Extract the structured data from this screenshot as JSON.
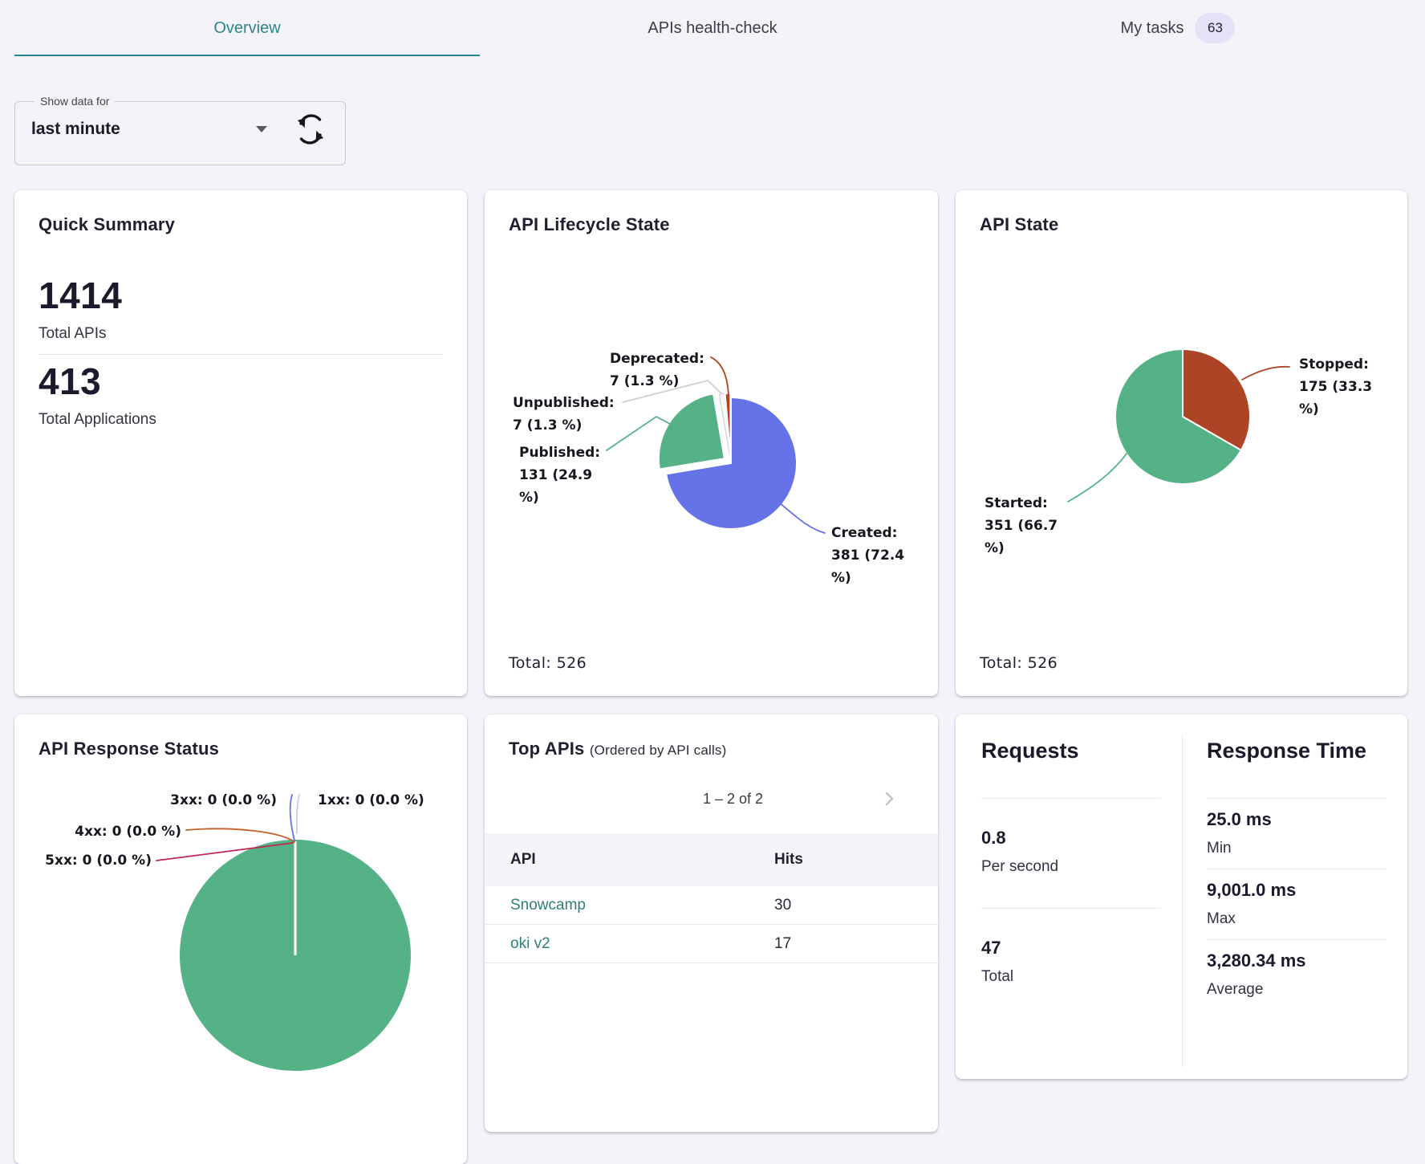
{
  "tabs": {
    "overview": "Overview",
    "health": "APIs health-check",
    "tasks": "My tasks",
    "tasks_badge": "63"
  },
  "filter": {
    "label": "Show data for",
    "value": "last minute"
  },
  "colors": {
    "accent_teal": "#2b858c",
    "link_teal": "#2f7e78",
    "slice_blue": "#6673e8",
    "slice_green": "#54b286",
    "slice_red": "#b5431f",
    "slice_brick": "#ad4425",
    "badge_bg": "#e5e2f7"
  },
  "cards": {
    "quick_summary": {
      "title": "Quick Summary",
      "metrics": [
        {
          "value": "1414",
          "label": "Total APIs"
        },
        {
          "value": "413",
          "label": "Total Applications"
        }
      ]
    },
    "top_apis": {
      "title": "Top APIs",
      "subtitle": "(Ordered by API calls)",
      "pagination_range": "1 – 2 of 2",
      "columns": [
        "API",
        "Hits"
      ],
      "rows": [
        {
          "api": "Snowcamp",
          "hits": "30"
        },
        {
          "api": "oki v2",
          "hits": "17"
        }
      ]
    },
    "requests_response": {
      "left": {
        "title": "Requests",
        "rows": [
          {
            "value": "0.8",
            "label": "Per second"
          },
          {
            "value": "47",
            "label": "Total"
          }
        ]
      },
      "right": {
        "title": "Response Time",
        "rows": [
          {
            "value": "25.0 ms",
            "label": "Min"
          },
          {
            "value": "9,001.0 ms",
            "label": "Max"
          },
          {
            "value": "3,280.34 ms",
            "label": "Average"
          }
        ]
      }
    }
  },
  "chart_data": [
    {
      "id": "lifecycle",
      "type": "pie",
      "title": "API Lifecycle State",
      "total_label": "Total: 526",
      "total": 526,
      "slices": [
        {
          "name": "Created",
          "value": 381,
          "percent": 72.4,
          "color": "#6673e8",
          "label_lines": [
            "Created:",
            "381 (72.4",
            "%)"
          ]
        },
        {
          "name": "Published",
          "value": 131,
          "percent": 24.9,
          "color": "#54b286",
          "label_lines": [
            "Published:",
            "131 (24.9",
            "%)"
          ]
        },
        {
          "name": "Unpublished",
          "value": 7,
          "percent": 1.3,
          "color": "#fbfbfd",
          "label_lines": [
            "Unpublished:",
            "7 (1.3 %)"
          ]
        },
        {
          "name": "Deprecated",
          "value": 7,
          "percent": 1.3,
          "color": "#b5431f",
          "label_lines": [
            "Deprecated:",
            "7 (1.3 %)"
          ]
        }
      ]
    },
    {
      "id": "state",
      "type": "pie",
      "title": "API State",
      "total_label": "Total: 526",
      "total": 526,
      "slices": [
        {
          "name": "Stopped",
          "value": 175,
          "percent": 33.3,
          "color": "#ad4425",
          "label_lines": [
            "Stopped:",
            "175 (33.3",
            "%)"
          ]
        },
        {
          "name": "Started",
          "value": 351,
          "percent": 66.7,
          "color": "#54b286",
          "label_lines": [
            "Started:",
            "351 (66.7",
            "%)"
          ]
        }
      ]
    },
    {
      "id": "status",
      "type": "pie",
      "title": "API Response Status",
      "slices": [
        {
          "name": "",
          "value": null,
          "percent": 100,
          "color": "#54b286",
          "label_lines": []
        },
        {
          "name": "1xx",
          "value": 0,
          "percent": 0,
          "color": "#6673e8",
          "label_lines": [
            "1xx: 0 (0.0 %)"
          ]
        },
        {
          "name": "3xx",
          "value": 0,
          "percent": 0,
          "color": "#c6c9ee",
          "label_lines": [
            "3xx: 0 (0.0 %)"
          ]
        },
        {
          "name": "4xx",
          "value": 0,
          "percent": 0,
          "color": "#c25f28",
          "label_lines": [
            "4xx: 0 (0.0 %)"
          ]
        },
        {
          "name": "5xx",
          "value": 0,
          "percent": 0,
          "color": "#c22653",
          "label_lines": [
            "5xx: 0 (0.0 %)"
          ]
        }
      ]
    }
  ]
}
